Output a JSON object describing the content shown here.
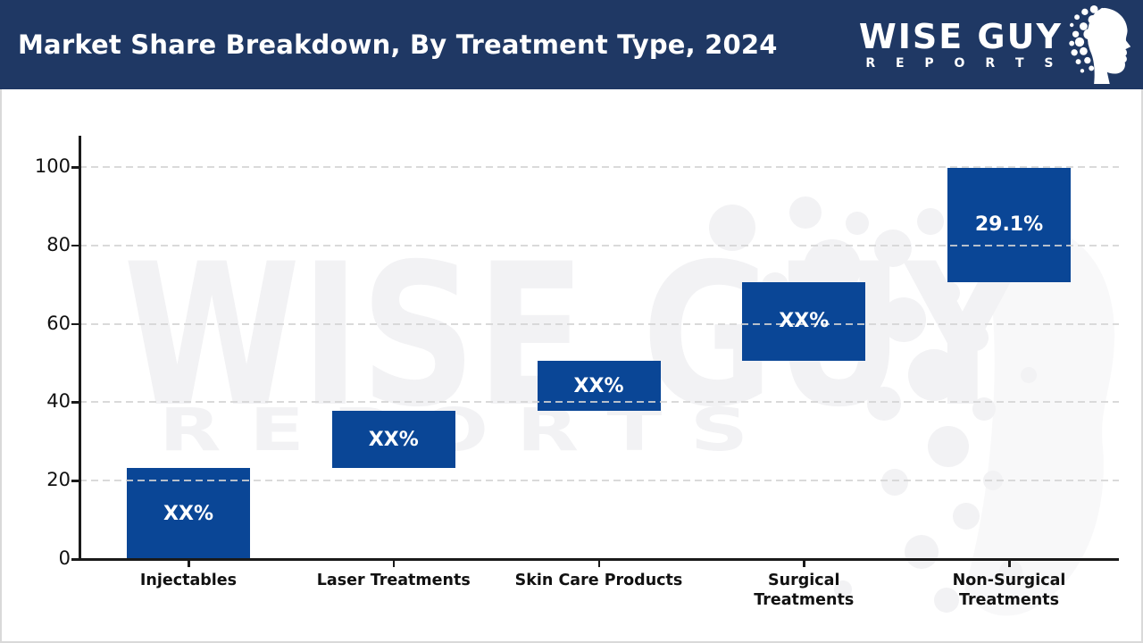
{
  "header": {
    "title": "Market Share Breakdown, By Treatment Type, 2024",
    "logo": {
      "line1": "WISE GUY",
      "line2": "R E P O R T S"
    }
  },
  "watermark": {
    "line1": "WISE GUY",
    "line2": "R E P O R T S"
  },
  "colors": {
    "header_bg": "#1f3864",
    "bar": "#0a4696",
    "bar_label": "#ffffff",
    "grid": "#d4d4d4",
    "axis": "#1a1a1a",
    "watermark": "#f2f2f4"
  },
  "chart_data": {
    "type": "bar",
    "subtype": "waterfall-floating-bars",
    "title": "Market Share Breakdown, By Treatment Type, 2024",
    "categories": [
      "Injectables",
      "Laser Treatments",
      "Skin Care Products",
      "Surgical\nTreatments",
      "Non-Surgical\nTreatments"
    ],
    "segments": [
      {
        "category": "Injectables",
        "start": 0,
        "end": 23.2,
        "value": 23.2,
        "label": "XX%"
      },
      {
        "category": "Laser Treatments",
        "start": 23.2,
        "end": 37.7,
        "value": 14.5,
        "label": "XX%"
      },
      {
        "category": "Skin Care Products",
        "start": 37.7,
        "end": 50.5,
        "value": 12.8,
        "label": "XX%"
      },
      {
        "category": "Surgical Treatments",
        "start": 50.5,
        "end": 70.7,
        "value": 20.2,
        "label": "XX%"
      },
      {
        "category": "Non-Surgical Treatments",
        "start": 70.7,
        "end": 99.8,
        "value": 29.1,
        "label": "29.1%"
      }
    ],
    "xlabel": "",
    "ylabel": "",
    "ylim": [
      0,
      100
    ],
    "yticks": [
      0,
      20,
      40,
      60,
      80,
      100
    ],
    "grid": "horizontal-dashed",
    "legend": "none"
  }
}
